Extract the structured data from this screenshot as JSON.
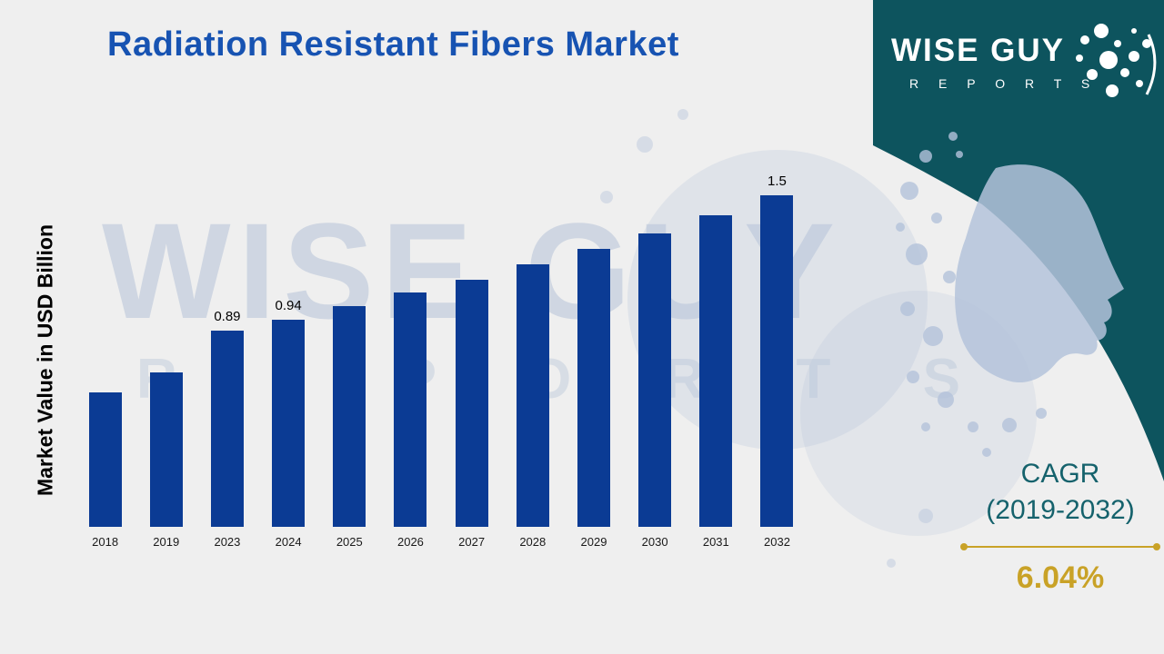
{
  "title": "Radiation Resistant Fibers Market",
  "watermark": {
    "line1": "WISE GUY",
    "line2": "R E P O R T S"
  },
  "logo": {
    "line1": "WISE GUY",
    "line2": "R E P O R T S"
  },
  "sidebar": {
    "cagr_label": "CAGR",
    "cagr_period": "(2019-2032)",
    "cagr_value": "6.04%"
  },
  "colors": {
    "title_blue": "#1753b2",
    "bar_blue": "#0b3b94",
    "teal": "#0d545e",
    "gold": "#c9a227",
    "background": "#efefef",
    "watermark_blue": "#9db0cc"
  },
  "chart_data": {
    "type": "bar",
    "title": "Radiation Resistant Fibers Market",
    "xlabel": "",
    "ylabel": "Market Value in USD Billion",
    "categories": [
      "2018",
      "2019",
      "2023",
      "2024",
      "2025",
      "2026",
      "2027",
      "2028",
      "2029",
      "2030",
      "2031",
      "2032"
    ],
    "values": [
      0.61,
      0.7,
      0.89,
      0.94,
      1.0,
      1.06,
      1.12,
      1.19,
      1.26,
      1.33,
      1.41,
      1.5
    ],
    "data_labels": {
      "2023": "0.89",
      "2024": "0.94",
      "2032": "1.5"
    },
    "ylim": [
      0,
      1.6
    ],
    "grid": false,
    "legend": false,
    "bar_color": "#0b3b94"
  }
}
